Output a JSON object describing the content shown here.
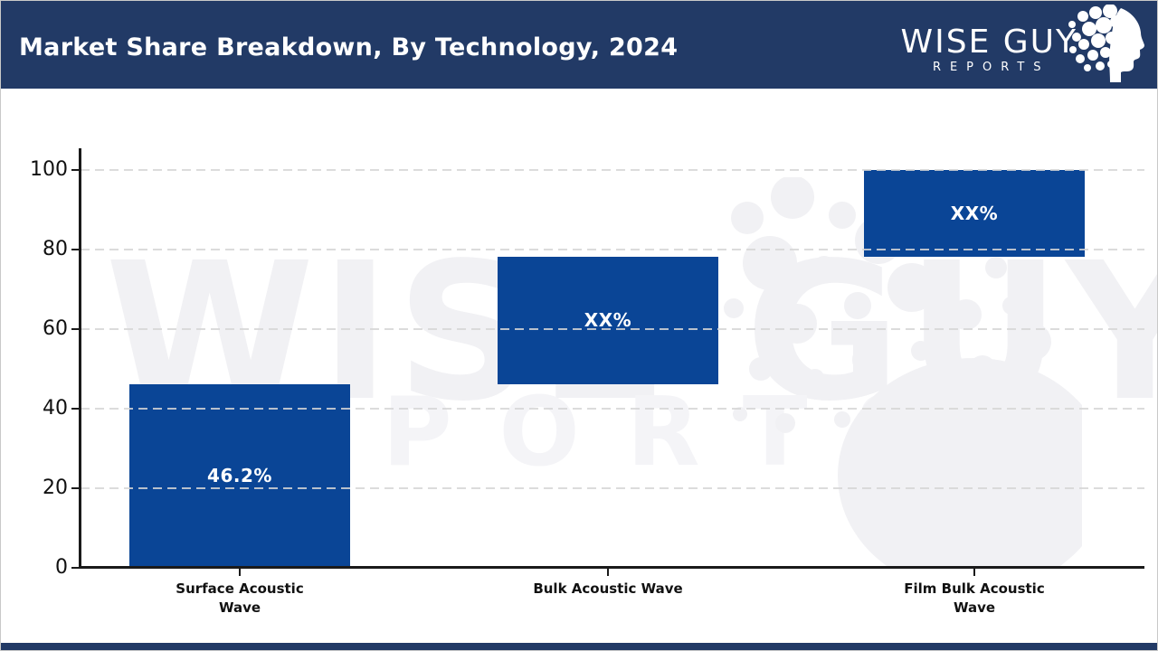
{
  "header": {
    "title": "Market Share Breakdown, By Technology, 2024",
    "bg_color": "#223A66",
    "logo": {
      "line1": "WISE GUY",
      "line2": "REPORTS",
      "face_icon": "dotted-face-profile"
    }
  },
  "watermark": {
    "line1": "WISE GUY",
    "line2": "REPORTS"
  },
  "footer": {
    "bg_color": "#223A66"
  },
  "chart_data": {
    "type": "bar",
    "variant": "floating-segment-bars",
    "title": "Market Share Breakdown, By Technology, 2024",
    "categories": [
      "Surface Acoustic Wave",
      "Bulk Acoustic Wave",
      "Film Bulk Acoustic Wave"
    ],
    "segments": [
      {
        "category": "Surface Acoustic Wave",
        "start": 0,
        "end": 46.2,
        "label": "46.2%"
      },
      {
        "category": "Bulk Acoustic Wave",
        "start": 46.2,
        "end": 78.2,
        "label": "XX%"
      },
      {
        "category": "Film Bulk Acoustic Wave",
        "start": 78.2,
        "end": 100,
        "label": "XX%"
      }
    ],
    "xlabel": "",
    "ylabel": "",
    "yticks": [
      0,
      20,
      40,
      60,
      80,
      100
    ],
    "ylim": [
      0,
      100
    ],
    "grid": "dashed-horizontal-over-bars",
    "legend": "none",
    "bar_color": "#0A4596",
    "bar_label_color": "#ffffff",
    "axis_color": "#1a1a1a",
    "grid_color": "#d6d6d6"
  }
}
